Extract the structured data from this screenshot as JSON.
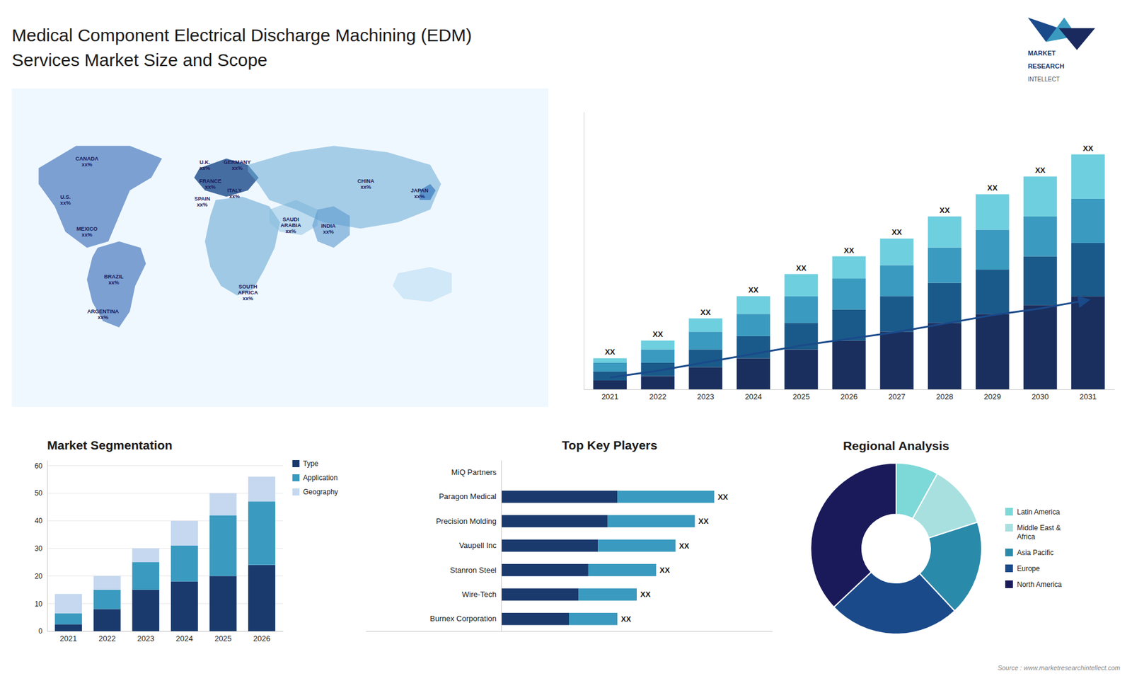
{
  "title": "Medical Component Electrical Discharge Machining (EDM)",
  "subtitle": "Services Market Size and Scope",
  "logo": [
    "MARKET",
    "RESEARCH",
    "INTELLECT"
  ],
  "source": "Source : www.marketresearchintellect.com",
  "chart_data": [
    {
      "type": "map",
      "annotations": [
        "CANADA\nxx%",
        "U.S.\nxx%",
        "MEXICO\nxx%",
        "BRAZIL\nxx%",
        "ARGENTINA\nxx%",
        "U.K.\nxx%",
        "FRANCE\nxx%",
        "SPAIN\nxx%",
        "GERMANY\nxx%",
        "ITALY\nxx%",
        "SAUDI\nARABIA\nxx%",
        "SOUTH\nAFRICA\nxx%",
        "CHINA\nxx%",
        "INDIA\nxx%",
        "JAPAN\nxx%"
      ]
    },
    {
      "type": "bar",
      "stacked": true,
      "categories": [
        "2021",
        "2022",
        "2023",
        "2024",
        "2025",
        "2026",
        "2027",
        "2028",
        "2029",
        "2030",
        "2031"
      ],
      "series": [
        {
          "color": "#1a2f5e",
          "values": [
            2,
            3,
            5,
            7,
            9,
            11,
            13,
            15,
            17,
            19,
            21
          ]
        },
        {
          "color": "#1a5a8a",
          "values": [
            2,
            3,
            4,
            5,
            6,
            7,
            8,
            9,
            10,
            11,
            12
          ]
        },
        {
          "color": "#3a9abf",
          "values": [
            2,
            3,
            4,
            5,
            6,
            7,
            7,
            8,
            9,
            9,
            10
          ]
        },
        {
          "color": "#6ecfdf",
          "values": [
            1,
            2,
            3,
            4,
            5,
            5,
            6,
            7,
            8,
            9,
            10
          ]
        },
        {
          "type": "line",
          "color": "#1a4a8a",
          "values": [
            2.66,
            4.18,
            6.08,
            7.98,
            9.88,
            11.4,
            12.92,
            14.82,
            16.72,
            18.24,
            20.14
          ]
        }
      ],
      "annotations": [
        "XX",
        "XX",
        "XX",
        "XX",
        "XX",
        "XX",
        "XX",
        "XX",
        "XX",
        "XX",
        "XX"
      ],
      "ylim": [
        0,
        62.54
      ],
      "tick_labels": "x"
    },
    {
      "type": "bar",
      "title": "Market Segmentation",
      "stacked": true,
      "categories": [
        "2021",
        "2022",
        "2023",
        "2024",
        "2025",
        "2026"
      ],
      "series": [
        {
          "name": "Type",
          "color": "#1a3a6e",
          "values": [
            2.5,
            8,
            15,
            18,
            20,
            24
          ]
        },
        {
          "name": "Application",
          "color": "#3a9abf",
          "values": [
            4,
            7,
            10,
            13,
            22,
            23
          ]
        },
        {
          "name": "Geography",
          "color": "#c5d8f0",
          "values": [
            7,
            5,
            5,
            9,
            8,
            9
          ]
        }
      ],
      "ylim": [
        0,
        62
      ],
      "yticks": [
        0,
        10,
        20,
        30,
        40,
        50,
        60
      ],
      "grid": true,
      "legend": "right"
    },
    {
      "type": "bar",
      "title": "Top Key Players",
      "orientation": "horizontal",
      "stacked": true,
      "categories": [
        "MiQ Partners",
        "Paragon Medical",
        "Precision Molding",
        "Vaupell Inc",
        "Stanron Steel",
        "Wire-Tech",
        "Burnex Corporation"
      ],
      "series": [
        {
          "color": "#1a3a6e",
          "values": [
            0,
            6,
            5.5,
            5,
            4.5,
            4,
            3.5
          ]
        },
        {
          "color": "#3a9abf",
          "values": [
            0,
            5,
            4.5,
            4,
            3.5,
            3,
            2.5
          ]
        }
      ],
      "annotations": [
        null,
        "XX",
        "XX",
        "XX",
        "XX",
        "XX",
        "XX"
      ],
      "xlim": [
        -7,
        14
      ],
      "tick_labels": "y"
    },
    {
      "type": "pie",
      "title": "Regional Analysis",
      "categories": [
        "Latin America",
        "Middle East &\nAfrica",
        "Asia Pacific",
        "Europe",
        "North America"
      ],
      "values": [
        8,
        12,
        18,
        25,
        37
      ],
      "colors": [
        "#7dd8d8",
        "#a8e0e0",
        "#2a8aaa",
        "#1a4a8a",
        "#1a1a5a"
      ],
      "legend": "right"
    }
  ]
}
